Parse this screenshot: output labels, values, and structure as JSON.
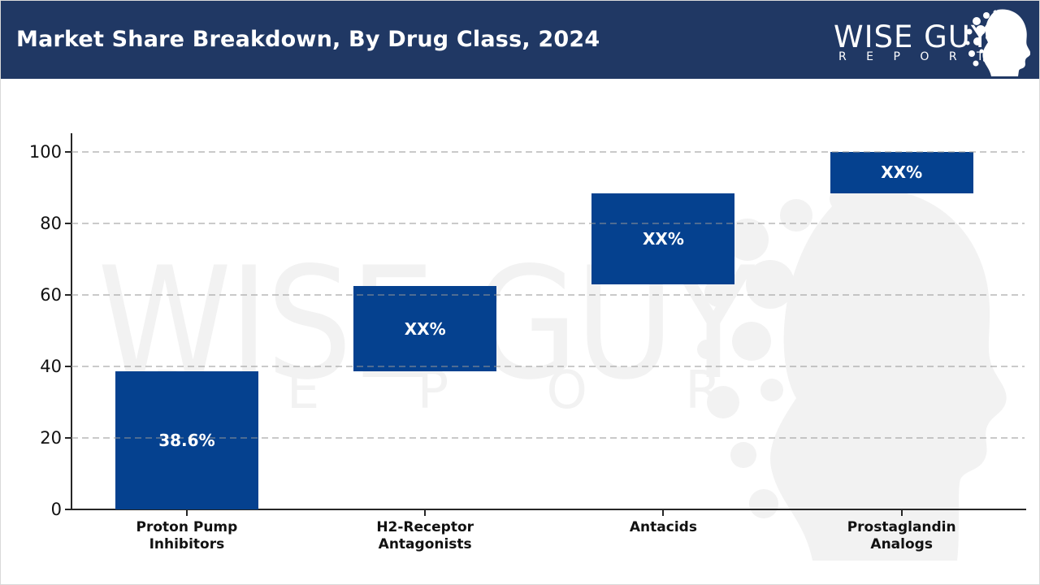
{
  "header": {
    "title": "Market Share Breakdown, By Drug Class, 2024",
    "bg_color": "#203864",
    "logo": {
      "primary": "WISE GUY",
      "secondary": "R E P O R T S"
    }
  },
  "watermark": {
    "primary": "WISE GUY",
    "secondary": "R E P O R T S"
  },
  "chart_data": {
    "type": "bar",
    "subtype": "waterfall",
    "title": "Market Share Breakdown, By Drug Class, 2024",
    "categories": [
      "Proton Pump\nInhibitors",
      "H2-Receptor\nAntagonists",
      "Antacids",
      "Prostaglandin\nAnalogs"
    ],
    "series": [
      {
        "category": "Proton Pump Inhibitors",
        "start": 0,
        "end": 38.6,
        "label": "38.6%"
      },
      {
        "category": "H2-Receptor Antagonists",
        "start": 38.6,
        "end": 62.5,
        "label": "XX%"
      },
      {
        "category": "Antacids",
        "start": 63.0,
        "end": 88.5,
        "label": "XX%"
      },
      {
        "category": "Prostaglandin Analogs",
        "start": 88.5,
        "end": 100,
        "label": "XX%"
      }
    ],
    "ylim": [
      0,
      100
    ],
    "yticks": [
      0,
      20,
      40,
      60,
      80,
      100
    ],
    "xlabel": "",
    "ylabel": "",
    "grid": {
      "axis": "y",
      "style": "dashed"
    },
    "legend": "none",
    "bar_color": "#05418F",
    "bar_label_color": "#FFFFFF",
    "axis_color": "#262626",
    "gridline_color": "#969696"
  }
}
